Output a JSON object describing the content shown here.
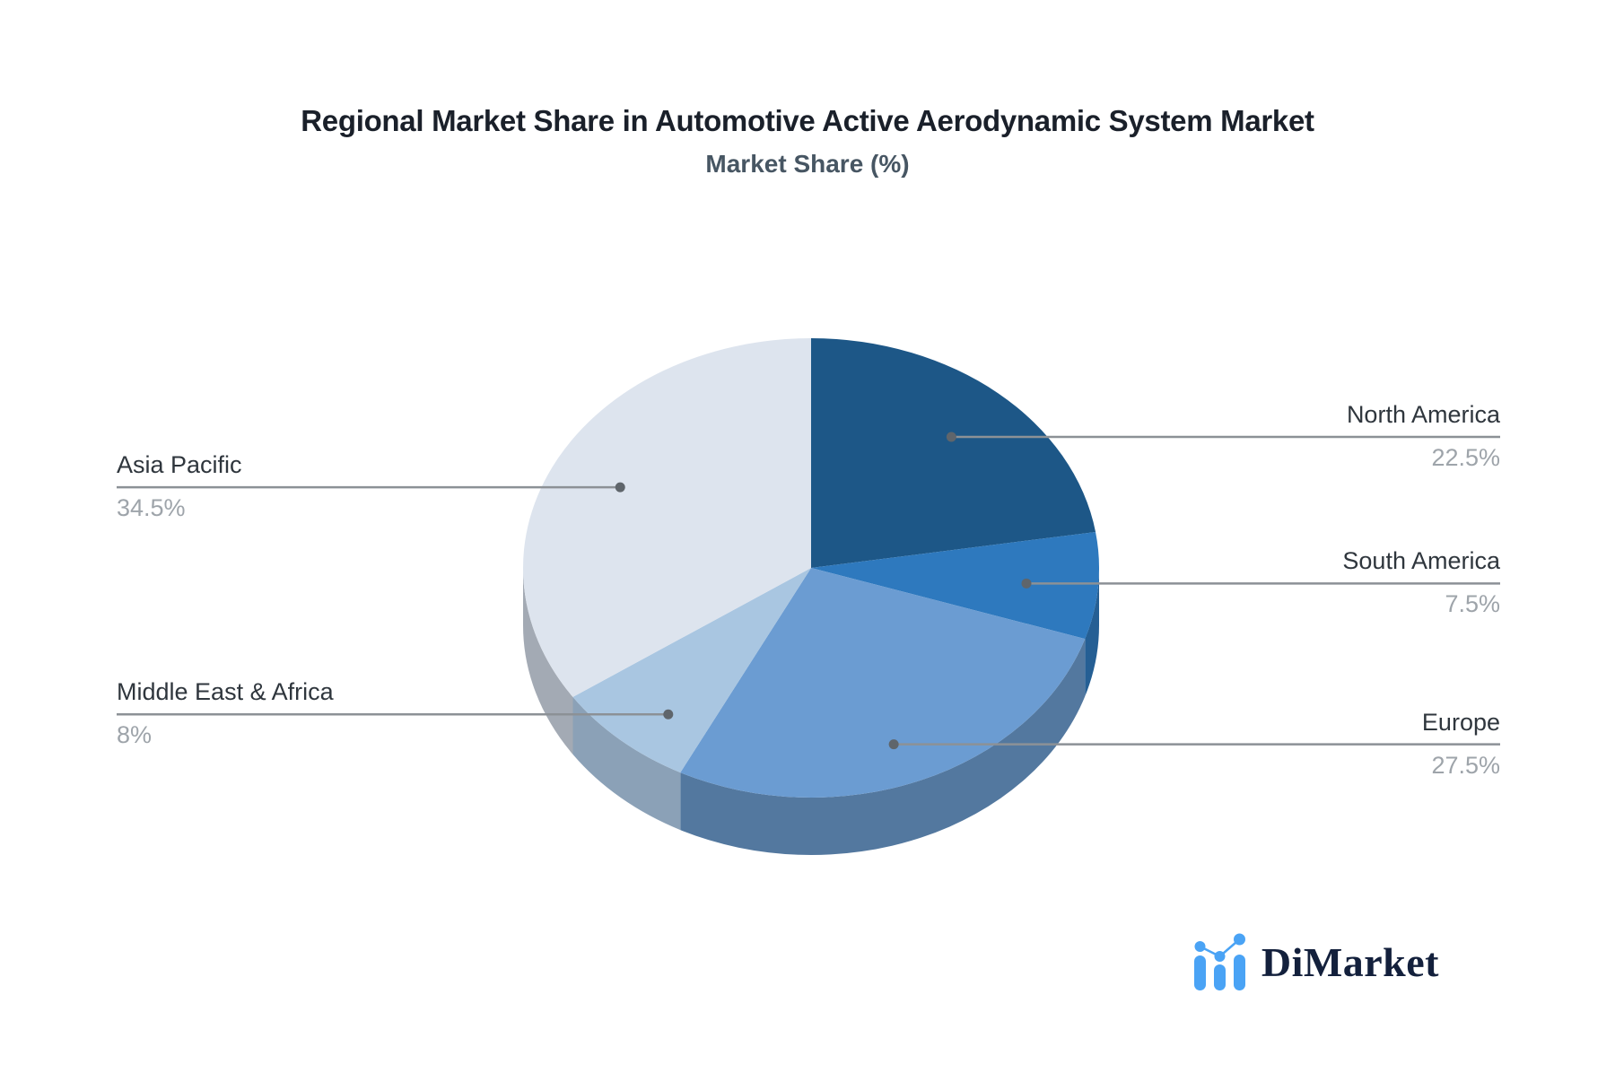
{
  "title": "Regional Market Share in Automotive Active Aerodynamic System Market",
  "subtitle": "Market Share (%)",
  "logo": {
    "text": "DiMarket"
  },
  "colors": {
    "background": "#ffffff",
    "title": "#1a202a",
    "subtitle": "#475663",
    "label": "#2f363d",
    "value": "#9ea4aa",
    "leader_line": "#8c9196",
    "leader_dot": "#5f656b",
    "logo_blue": "#4aa3f5",
    "logo_text": "#13203c"
  },
  "chart_data": {
    "type": "pie",
    "title": "Regional Market Share in Automotive Active Aerodynamic System Market",
    "subtitle": "Market Share (%)",
    "unit": "%",
    "style": "3d-pie-with-callouts",
    "legend_position": "none",
    "start_angle": "12-o-clock",
    "direction": "clockwise",
    "series": [
      {
        "label": "North America",
        "value": 22.5,
        "display": "22.5%",
        "color": "#1d5787",
        "side_color": "#17466c",
        "label_side": "right"
      },
      {
        "label": "South America",
        "value": 7.5,
        "display": "7.5%",
        "color": "#2e79be",
        "side_color": "#255f94",
        "label_side": "right"
      },
      {
        "label": "Europe",
        "value": 27.5,
        "display": "27.5%",
        "color": "#6b9cd2",
        "side_color": "#53789f",
        "label_side": "right"
      },
      {
        "label": "Middle East & Africa",
        "value": 8,
        "display": "8%",
        "color": "#a9c6e1",
        "side_color": "#8ba1b7",
        "label_side": "left"
      },
      {
        "label": "Asia Pacific",
        "value": 34.5,
        "display": "34.5%",
        "color": "#dde4ee",
        "side_color": "#a3aab4",
        "label_side": "left"
      }
    ]
  }
}
